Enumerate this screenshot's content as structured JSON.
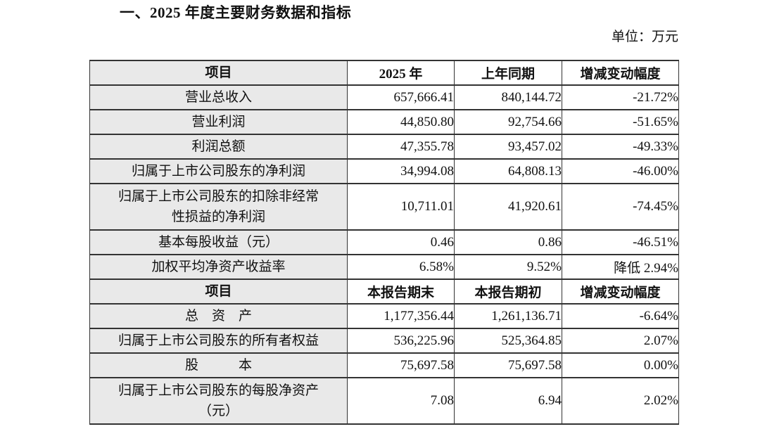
{
  "page": {
    "title": "一、2025 年度主要财务数据和指标",
    "unit_label": "单位：万元"
  },
  "table": {
    "rows": [
      {
        "type": "header",
        "cells": [
          "项目",
          "2025 年",
          "上年同期",
          "增减变动幅度"
        ]
      },
      {
        "type": "data",
        "cells": [
          "营业总收入",
          "657,666.41",
          "840,144.72",
          "-21.72%"
        ]
      },
      {
        "type": "data",
        "cells": [
          "营业利润",
          "44,850.80",
          "92,754.66",
          "-51.65%"
        ]
      },
      {
        "type": "data",
        "cells": [
          "利润总额",
          "47,355.78",
          "93,457.02",
          "-49.33%"
        ]
      },
      {
        "type": "data",
        "cells": [
          "归属于上市公司股东的净利润",
          "34,994.08",
          "64,808.13",
          "-46.00%"
        ]
      },
      {
        "type": "data",
        "cells": [
          "归属于上市公司股东的扣除非经常\n性损益的净利润",
          "10,711.01",
          "41,920.61",
          "-74.45%"
        ]
      },
      {
        "type": "data",
        "cells": [
          "基本每股收益（元）",
          "0.46",
          "0.86",
          "-46.51%"
        ]
      },
      {
        "type": "data",
        "cells": [
          "加权平均净资产收益率",
          "6.58%",
          "9.52%",
          "降低 2.94%"
        ]
      },
      {
        "type": "header",
        "cells": [
          "项目",
          "本报告期末",
          "本报告期初",
          "增减变动幅度"
        ]
      },
      {
        "type": "data",
        "cells": [
          "总　资　产",
          "1,177,356.44",
          "1,261,136.71",
          "-6.64%"
        ]
      },
      {
        "type": "data",
        "cells": [
          "归属于上市公司股东的所有者权益",
          "536,225.96",
          "525,364.85",
          "2.07%"
        ]
      },
      {
        "type": "data",
        "cells": [
          "股　　　本",
          "75,697.58",
          "75,697.58",
          "0.00%"
        ]
      },
      {
        "type": "data",
        "cells": [
          "归属于上市公司股东的每股净资产\n（元）",
          "7.08",
          "6.94",
          "2.02%"
        ]
      }
    ]
  }
}
